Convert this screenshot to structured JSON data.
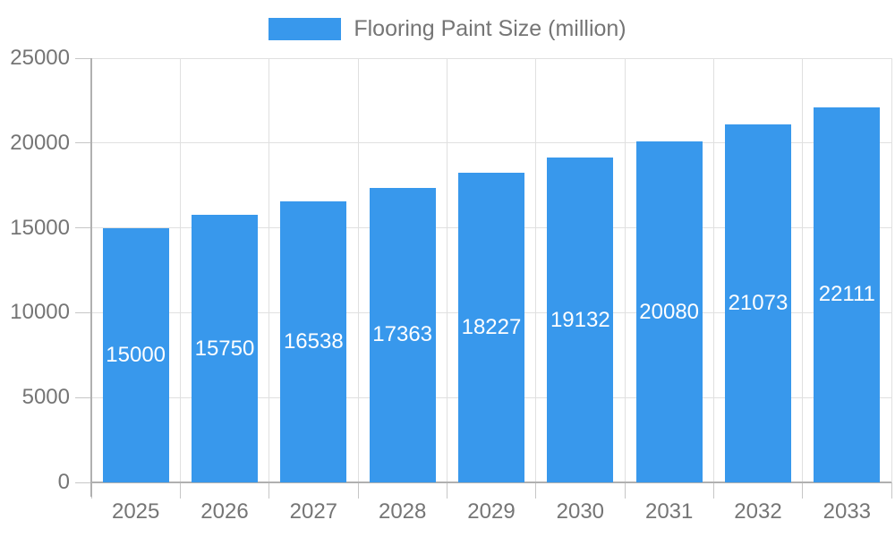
{
  "chart_data": {
    "type": "bar",
    "title": "Flooring Paint Size (million)",
    "legend_label": "Flooring Paint Size (million)",
    "legend_position": "top-center",
    "categories": [
      "2025",
      "2026",
      "2027",
      "2028",
      "2029",
      "2030",
      "2031",
      "2032",
      "2033"
    ],
    "values": [
      15000,
      15750,
      16538,
      17363,
      18227,
      19132,
      20080,
      21073,
      22111
    ],
    "xlabel": "",
    "ylabel": "",
    "ylim": [
      0,
      25000
    ],
    "ytick_interval": 5000,
    "ytick_labels": [
      "0",
      "5000",
      "10000",
      "15000",
      "20000",
      "25000"
    ],
    "grid": true,
    "colors": {
      "bar": "#3898EC",
      "bar_value_label": "#ffffff",
      "axis_text": "#757575",
      "gridline": "#e0e0e0",
      "axis_line": "#b0b0b0",
      "tick_line": "#c6c6c6"
    }
  }
}
